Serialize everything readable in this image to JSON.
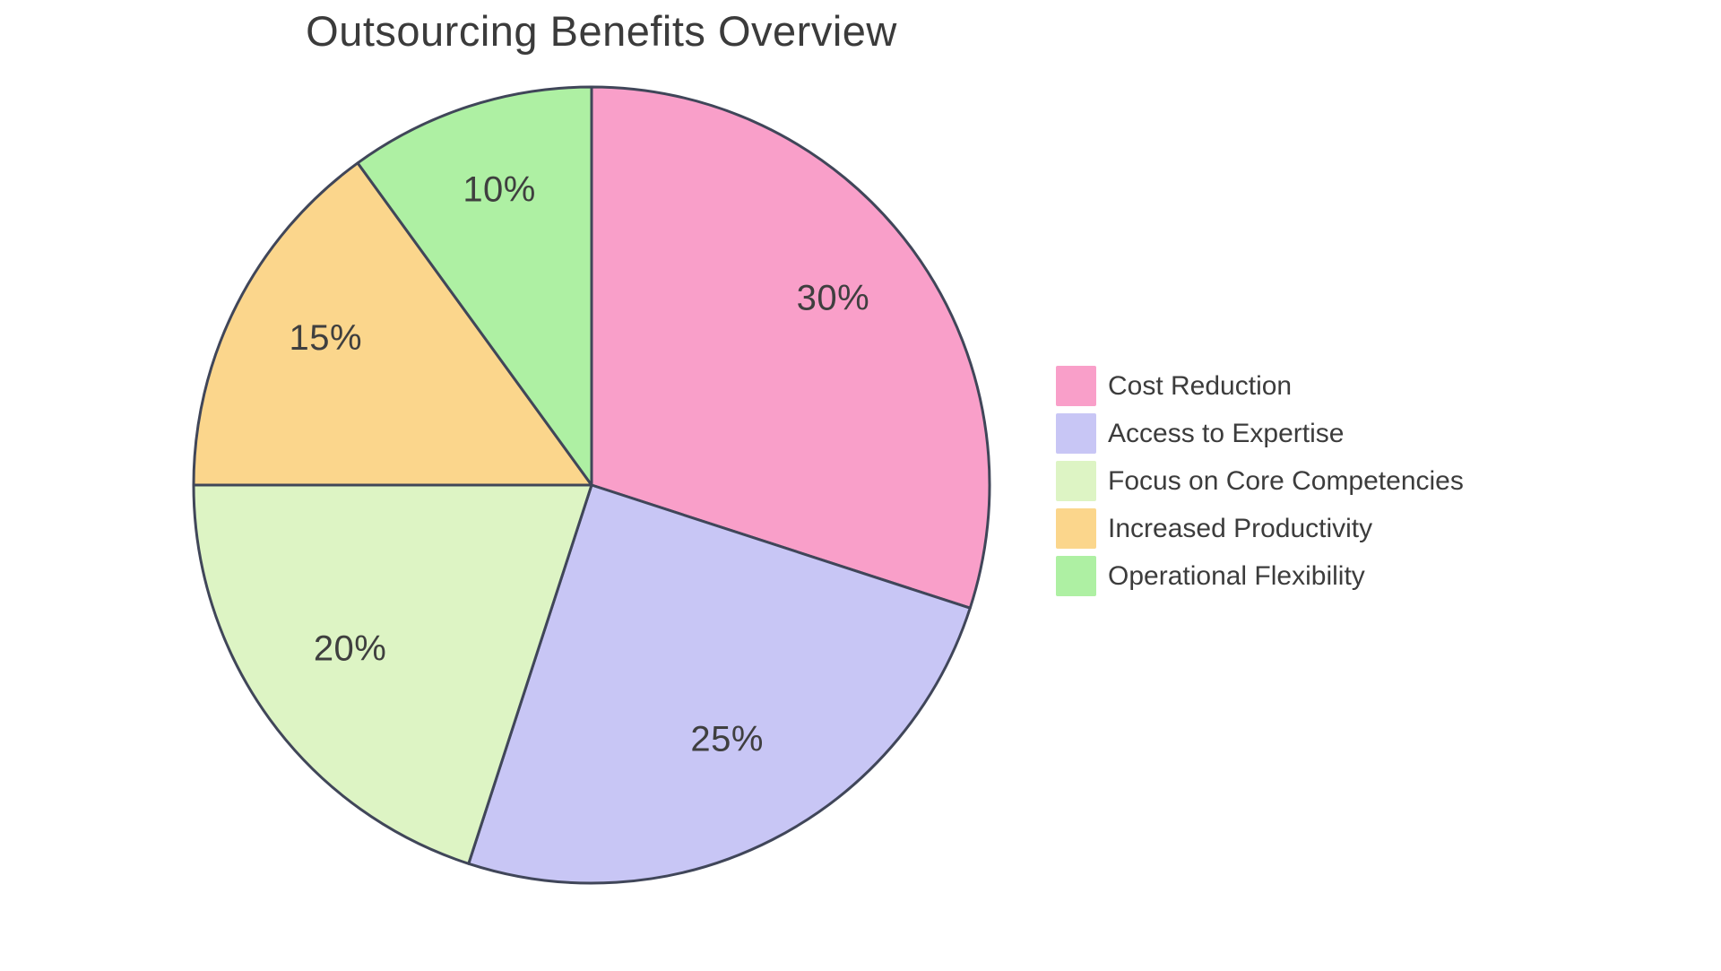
{
  "chart_data": {
    "type": "pie",
    "title": "Outsourcing Benefits Overview",
    "categories": [
      "Cost Reduction",
      "Access to Expertise",
      "Focus on Core Competencies",
      "Increased Productivity",
      "Operational Flexibility"
    ],
    "values": [
      30,
      25,
      20,
      15,
      10
    ],
    "slice_labels": [
      "30%",
      "25%",
      "20%",
      "15%",
      "10%"
    ],
    "colors": [
      "#f99fc9",
      "#c8c6f5",
      "#ddf4c4",
      "#fbd68c",
      "#aef0a3"
    ],
    "stroke_color": "#404659",
    "stroke_width": 3,
    "start_angle_deg": 0,
    "clockwise": true,
    "legend_position": "right",
    "title_color": "#3b3b3b",
    "label_color": "#3f3f3f",
    "background_color": "#ffffff"
  }
}
